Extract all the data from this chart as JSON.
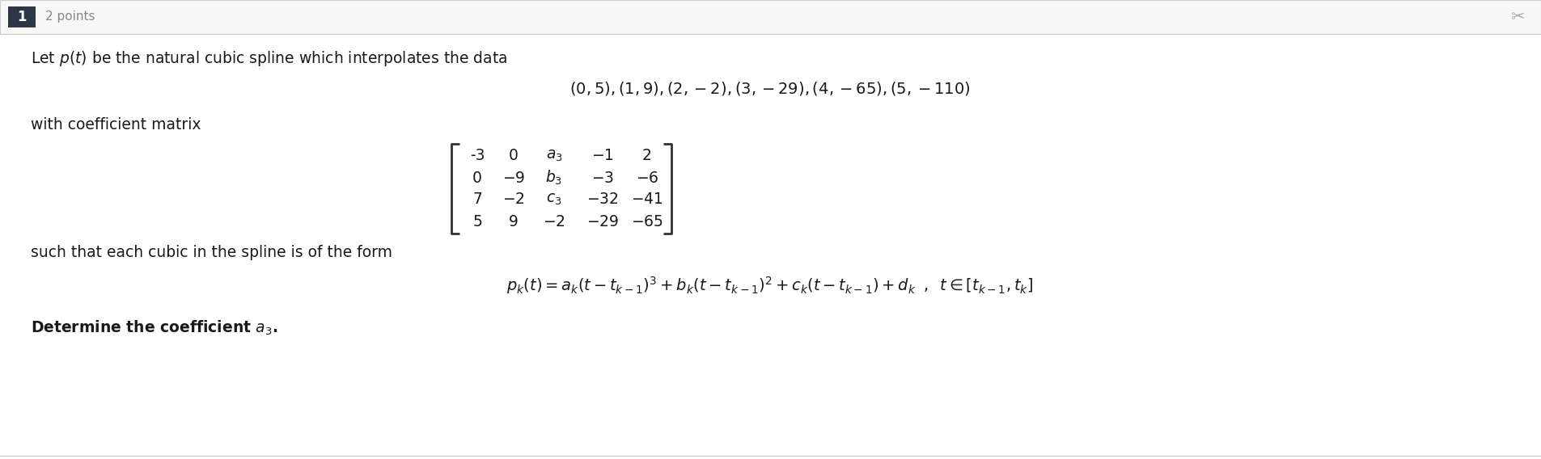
{
  "background_color": "#ffffff",
  "question_number": "1",
  "points_text": "2 points",
  "header_bg": "#2d3748",
  "header_text_color": "#ffffff",
  "points_color": "#888888",
  "body_text_color": "#1a1a1a",
  "matrix_text_color": "#1a1a1a",
  "line1": "Let $p(t)$ be the natural cubic spline which interpolates the data",
  "line2": "$(0, 5), (1, 9), (2, -2), (3, -29), (4, -65), (5, -110)$",
  "line3": "with coefficient matrix",
  "matrix_rows": [
    [
      "-3",
      "0",
      "$a_3$",
      "$-1$",
      "2"
    ],
    [
      "0",
      "$-9$",
      "$b_3$",
      "$-3$",
      "$-6$"
    ],
    [
      "7",
      "$-2$",
      "$c_3$",
      "$-32$",
      "$-41$"
    ],
    [
      "5",
      "9",
      "$-2$",
      "$-29$",
      "$-65$"
    ]
  ],
  "line4": "such that each cubic in the spline is of the form",
  "line5_bold": "Determine the coefficient ",
  "line5_math": "$a_3$",
  "line5_end": ".",
  "font_size_body": 13.5,
  "font_size_header": 12,
  "font_size_matrix": 13.5,
  "font_size_formula": 14
}
